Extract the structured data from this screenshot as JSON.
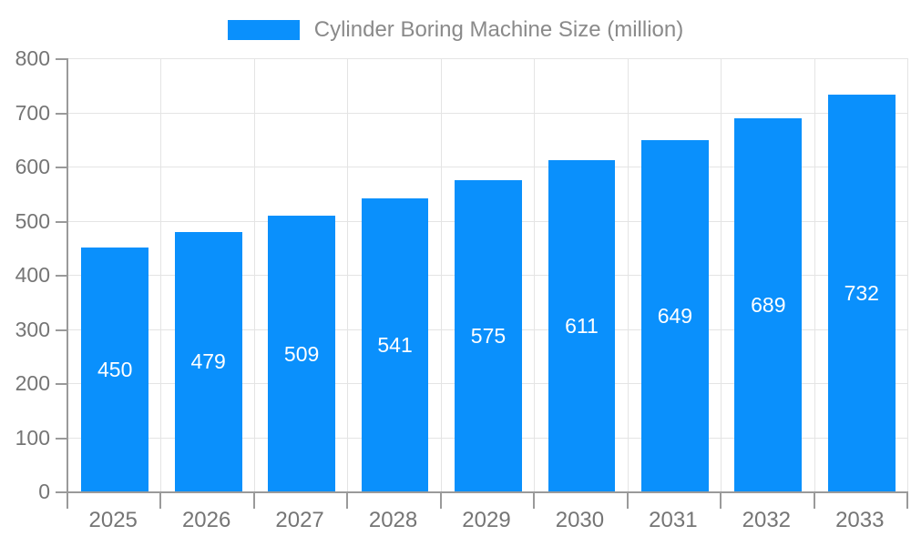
{
  "legend": {
    "label": "Cylinder Boring Machine Size (million)"
  },
  "colors": {
    "bar": "#0a90fc",
    "axis": "#9a9a9a",
    "grid": "#e4e4e4",
    "axis_text": "#757575",
    "legend_text": "#8a8a8a",
    "value_label_text": "#ffffff"
  },
  "chart_data": {
    "type": "bar",
    "title": "Cylinder Boring Machine Size (million)",
    "categories": [
      "2025",
      "2026",
      "2027",
      "2028",
      "2029",
      "2030",
      "2031",
      "2032",
      "2033"
    ],
    "values": [
      450,
      479,
      509,
      541,
      575,
      611,
      649,
      689,
      732
    ],
    "xlabel": "",
    "ylabel": "",
    "ylim": [
      0,
      800
    ],
    "ytick_step": 100,
    "ytick_labels": [
      "0",
      "100",
      "200",
      "300",
      "400",
      "500",
      "600",
      "700",
      "800"
    ],
    "grid": true,
    "legend_position": "top-center",
    "value_labels": "centered-inside-bars"
  }
}
